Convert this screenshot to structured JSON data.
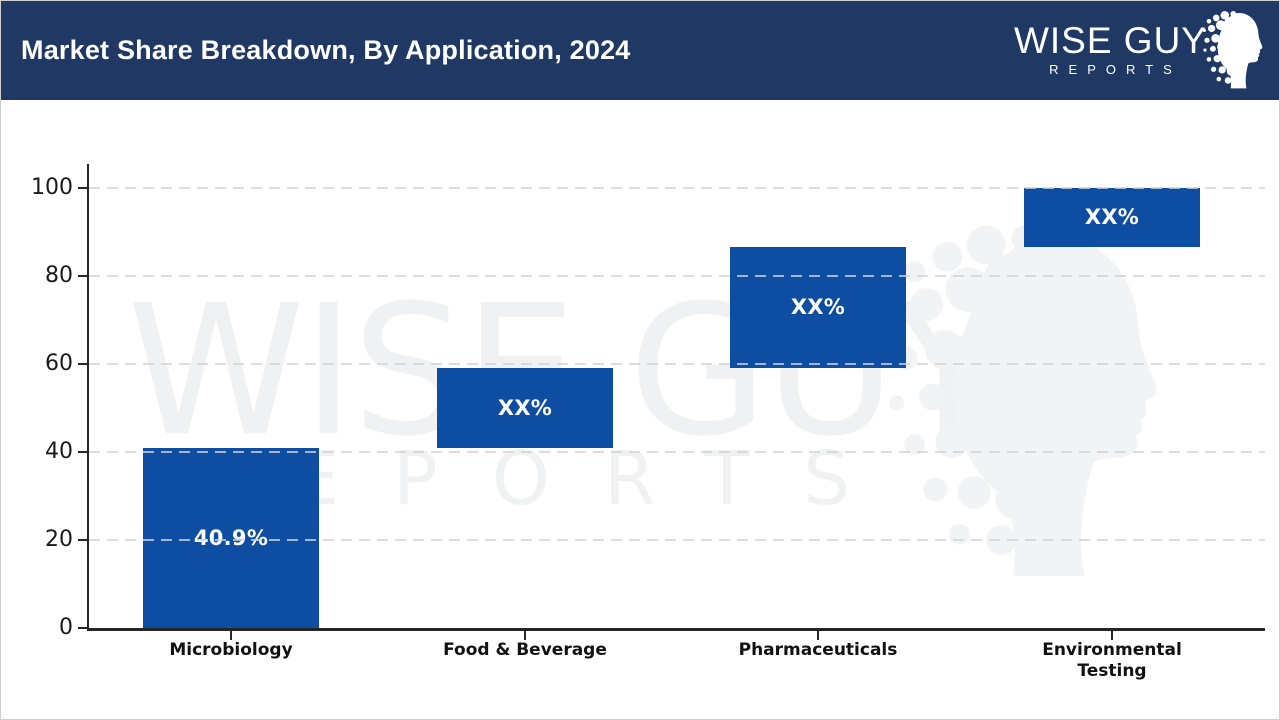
{
  "header": {
    "title": "Market Share Breakdown, By Application, 2024",
    "logo": {
      "wordmark": "WISE GUY",
      "sub": "REPORTS"
    }
  },
  "watermark": {
    "wordmark": "WISE GUY",
    "sub": "REPORTS"
  },
  "chart_data": {
    "type": "bar",
    "subtype": "waterfall",
    "title": "Market Share Breakdown, By Application, 2024",
    "categories": [
      "Microbiology",
      "Food & Beverage",
      "Pharmaceuticals",
      "Environmental Testing"
    ],
    "segments": [
      {
        "category": "Microbiology",
        "start": 0,
        "end": 40.9,
        "label": "40.9%"
      },
      {
        "category": "Food & Beverage",
        "start": 40.9,
        "end": 59.1,
        "label": "XX%"
      },
      {
        "category": "Pharmaceuticals",
        "start": 59.1,
        "end": 86.6,
        "label": "XX%"
      },
      {
        "category": "Environmental Testing",
        "start": 86.6,
        "end": 100,
        "label": "XX%"
      }
    ],
    "yticks": [
      0,
      20,
      40,
      60,
      80,
      100
    ],
    "ylim": [
      0,
      105
    ],
    "xlabel": "",
    "ylabel": "",
    "grid": "horizontal-dashed",
    "legend": "none"
  },
  "colors": {
    "header_bg": "#1f3864",
    "bar": "#0d4ea2",
    "bar_label": "#ffffff",
    "axis": "#262626",
    "grid": "#d2d2d2",
    "watermark": "#f0f1f3",
    "page_bg": "#ffffff"
  }
}
